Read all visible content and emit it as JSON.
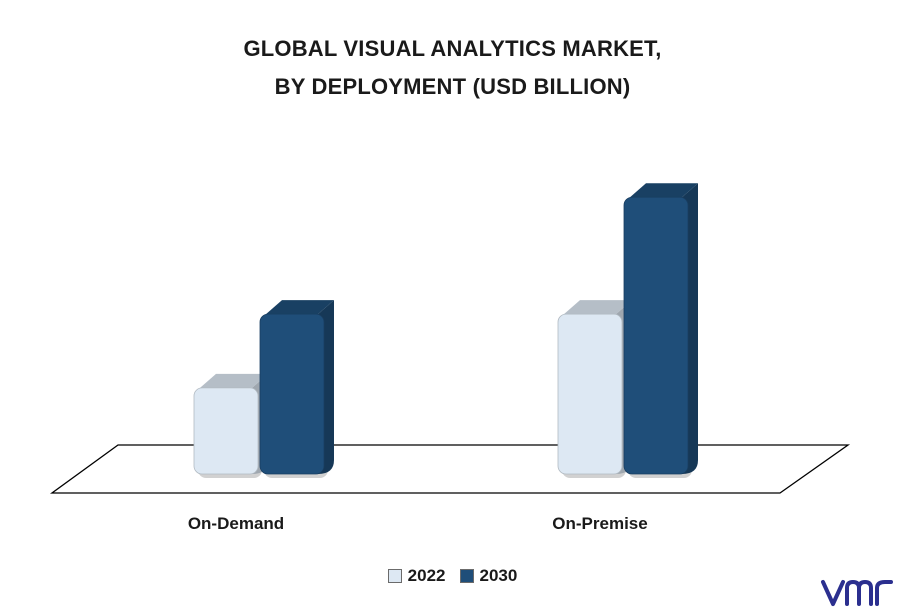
{
  "title": {
    "line1": "GLOBAL VISUAL ANALYTICS MARKET,",
    "line2": "BY DEPLOYMENT  (USD BILLION)"
  },
  "chart_data": {
    "type": "bar",
    "categories": [
      "On-Demand",
      "On-Premise"
    ],
    "series": [
      {
        "name": "2022",
        "values": [
          1.4,
          2.6
        ],
        "color": "#dde8f3"
      },
      {
        "name": "2030",
        "values": [
          2.6,
          4.5
        ],
        "color": "#1f4e79"
      }
    ],
    "ylim": [
      0,
      5
    ],
    "grid": false,
    "legend_position": "bottom",
    "style": "3d"
  },
  "legend": {
    "items": [
      "2022",
      "2030"
    ]
  },
  "logo": {
    "icon": "vmr-logo-icon",
    "color": "#2b2f8f"
  }
}
